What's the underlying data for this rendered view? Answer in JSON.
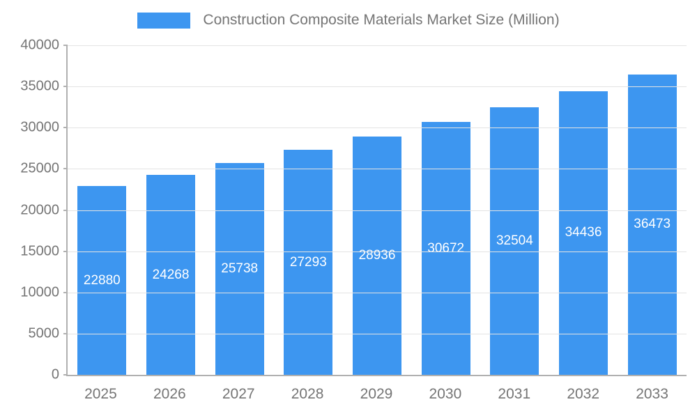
{
  "chart_data": {
    "type": "bar",
    "title": "Construction Composite Materials Market Size (Million)",
    "categories": [
      "2025",
      "2026",
      "2027",
      "2028",
      "2029",
      "2030",
      "2031",
      "2032",
      "2033"
    ],
    "values": [
      22880,
      24268,
      25738,
      27293,
      28936,
      30672,
      32504,
      34436,
      36473
    ],
    "xlabel": "",
    "ylabel": "",
    "ylim": [
      0,
      40000
    ],
    "yticks": [
      0,
      5000,
      10000,
      15000,
      20000,
      25000,
      30000,
      35000,
      40000
    ],
    "grid": true,
    "legend_position": "top-center",
    "bar_color": "#3d96f0",
    "value_label_color": "#ffffff",
    "axis_text_color": "#757575"
  }
}
